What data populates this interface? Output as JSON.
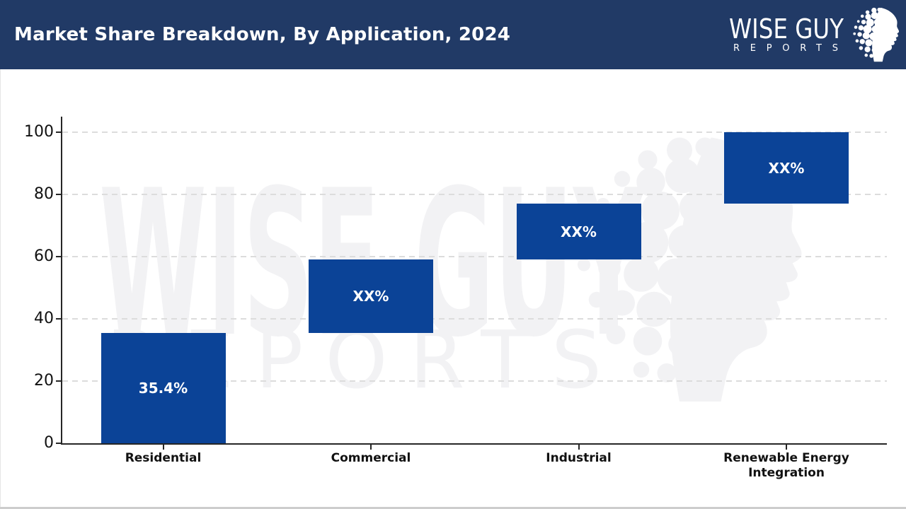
{
  "header": {
    "title": "Market Share Breakdown, By Application, 2024",
    "logo": {
      "name": "Wise Guy Reports",
      "line1": "WISE GUY",
      "line2": "REPORTS"
    }
  },
  "watermark": {
    "line1": "WISE GUY",
    "line2": "REPORTS"
  },
  "colors": {
    "header_bg": "#213a66",
    "bar": "#0b4397",
    "bar_label": "#ffffff",
    "gridline": "#dcdcdc",
    "axis": "#262626",
    "tick_text": "#111111",
    "watermark": "#f2f2f4"
  },
  "chart_data": {
    "type": "bar",
    "variant": "waterfall",
    "title": "Market Share Breakdown, By Application, 2024",
    "categories": [
      "Residential",
      "Commercial",
      "Industrial",
      "Renewable Energy Integration"
    ],
    "segments": [
      {
        "category": "Residential",
        "label": "35.4%",
        "start": 0,
        "end": 35.4,
        "value": 35.4
      },
      {
        "category": "Commercial",
        "label": "XX%",
        "start": 35.4,
        "end": 59,
        "value_estimated": 23.6
      },
      {
        "category": "Industrial",
        "label": "XX%",
        "start": 59,
        "end": 77,
        "value_estimated": 18
      },
      {
        "category": "Renewable Energy Integration",
        "label": "XX%",
        "start": 77,
        "end": 100,
        "value_estimated": 23
      }
    ],
    "yticks": [
      0,
      20,
      40,
      60,
      80,
      100
    ],
    "ylim": [
      0,
      105
    ],
    "grid": true,
    "grid_style": "dashed",
    "legend": false,
    "xlabel": "",
    "ylabel": ""
  }
}
